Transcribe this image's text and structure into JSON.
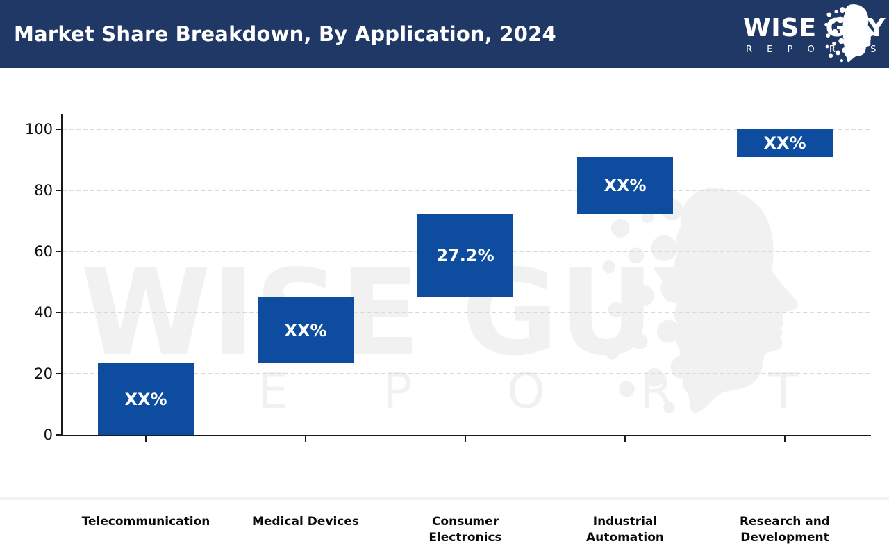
{
  "header": {
    "title": "Market Share Breakdown, By Application, 2024",
    "logo": {
      "name": "WISE GUY",
      "sub": "R E P O R T S"
    }
  },
  "watermark": {
    "line1": "WISE GUY",
    "line2": "R E P O R T S"
  },
  "colors": {
    "header_bg": "#1f3866",
    "bar": "#0d4c9e",
    "bar_label": "#ffffff",
    "axis": "#1a1a1a",
    "tick_label": "#111111",
    "grid": "#d9d9d9",
    "watermark": "#f1f1f1"
  },
  "chart_data": {
    "type": "bar",
    "subtype": "waterfall-floating-bars",
    "title": "Market Share Breakdown, By Application, 2024",
    "categories": [
      "Telecommunication",
      "Medical Devices",
      "Consumer Electronics",
      "Industrial Automation",
      "Research and Development"
    ],
    "category_display": [
      "Telecommunication",
      "Medical Devices",
      "Consumer\nElectronics",
      "Industrial\nAutomation",
      "Research and\nDevelopment"
    ],
    "segments": [
      {
        "category": "Telecommunication",
        "start": 0.0,
        "end": 23.4,
        "label": "XX%"
      },
      {
        "category": "Medical Devices",
        "start": 23.4,
        "end": 45.0,
        "label": "XX%"
      },
      {
        "category": "Consumer Electronics",
        "start": 45.0,
        "end": 72.2,
        "label": "27.2%"
      },
      {
        "category": "Industrial Automation",
        "start": 72.2,
        "end": 90.8,
        "label": "XX%"
      },
      {
        "category": "Research and Development",
        "start": 90.8,
        "end": 100.0,
        "label": "XX%"
      }
    ],
    "ylim": [
      0,
      100
    ],
    "yticks": [
      0,
      20,
      40,
      60,
      80,
      100
    ],
    "xlabel": "",
    "ylabel": "",
    "grid": "horizontal-dashed",
    "legend": "none"
  }
}
